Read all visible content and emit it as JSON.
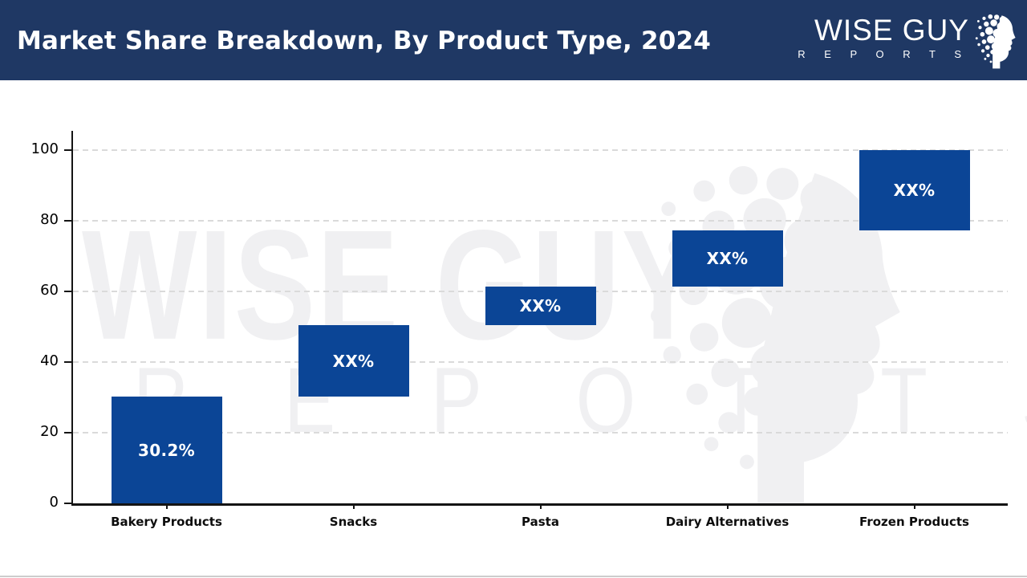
{
  "header": {
    "title": "Market Share Breakdown, By Product Type, 2024",
    "bg_color": "#1f3864",
    "logo": {
      "line1": "WISE GUY",
      "line2": "R E P O R T S"
    }
  },
  "watermark": {
    "line1": "WISE GUY",
    "line2": "R E P O R T S",
    "color": "#f0f0f2"
  },
  "chart_data": {
    "type": "bar",
    "subtype": "waterfall",
    "title": "Market Share Breakdown, By Product Type, 2024",
    "xlabel": "",
    "ylabel": "",
    "categories": [
      "Bakery Products",
      "Snacks",
      "Pasta",
      "Dairy Alternatives",
      "Frozen Products"
    ],
    "segments": [
      {
        "category": "Bakery Products",
        "start": 0,
        "end": 30.2,
        "label": "30.2%"
      },
      {
        "category": "Snacks",
        "start": 30.2,
        "end": 50.4,
        "label": "XX%"
      },
      {
        "category": "Pasta",
        "start": 50.4,
        "end": 61.3,
        "label": "XX%"
      },
      {
        "category": "Dairy Alternatives",
        "start": 61.3,
        "end": 77.3,
        "label": "XX%"
      },
      {
        "category": "Frozen Products",
        "start": 77.3,
        "end": 100.0,
        "label": "XX%"
      }
    ],
    "yticks": [
      0,
      20,
      40,
      60,
      80,
      100
    ],
    "ylim": [
      0,
      105.5
    ],
    "grid": "horizontal-dashed",
    "grid_color": "#dadada",
    "bar_color": "#0b4596",
    "bar_label_color": "#ffffff",
    "legend": "none"
  }
}
